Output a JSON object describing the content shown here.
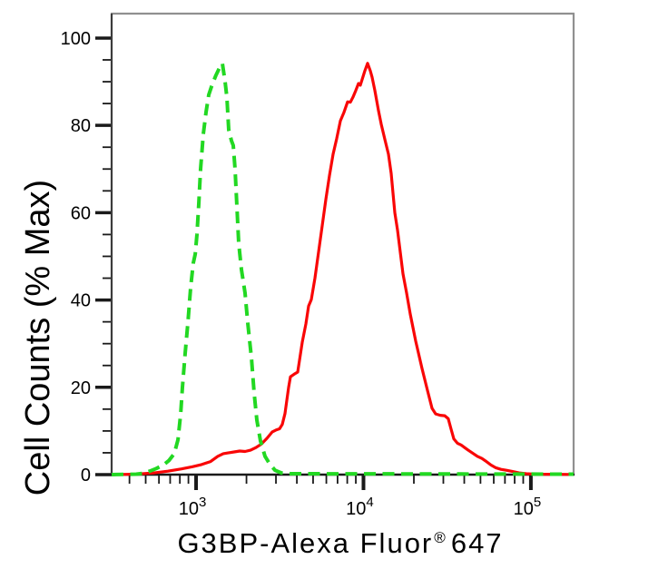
{
  "chart_data": {
    "type": "line",
    "subtype": "flow-cytometry-overlay-histogram",
    "title": "",
    "xlabel": "G3BP-Alexa Fluor® 647",
    "xlabel_parts": {
      "prefix": "G3BP-Alexa Fluor",
      "registered": "®",
      "suffix": "647"
    },
    "ylabel": "Cell Counts (% Max)",
    "x_scale": "log",
    "x_range": [
      313,
      180000
    ],
    "ylim": [
      0,
      105.6
    ],
    "grid": false,
    "legend": "none",
    "y_axis": {
      "major_ticks": [
        0,
        20,
        40,
        60,
        80,
        100
      ],
      "minor_tick_step": 5
    },
    "x_axis": {
      "major_ticks": [
        {
          "value": 1000,
          "base": "10",
          "exponent": "3"
        },
        {
          "value": 10000,
          "base": "10",
          "exponent": "4"
        },
        {
          "value": 100000,
          "base": "10",
          "exponent": "5"
        }
      ],
      "minor_tick_multipliers": [
        2,
        3,
        4,
        5,
        6,
        7,
        8,
        9
      ]
    },
    "colors": {
      "green_dashed": "#22D822",
      "red_solid": "#F90606",
      "axis": "#1A1A1A",
      "left_axis": "#3C3C3C",
      "frame": "#909090",
      "background": "#FFFFFF",
      "text": "#000000"
    },
    "series": [
      {
        "name": "green-dashed-control",
        "color": "#22D822",
        "style": "dashed",
        "peak_value": 1436,
        "peak_pct": 94.2,
        "points": [
          [
            313,
            0
          ],
          [
            439,
            0.1
          ],
          [
            485,
            0.3
          ],
          [
            529,
            0.8
          ],
          [
            578,
            1.4
          ],
          [
            638,
            2.2
          ],
          [
            687,
            3.2
          ],
          [
            741,
            4.8
          ],
          [
            780,
            8
          ],
          [
            809,
            14
          ],
          [
            829,
            20
          ],
          [
            861,
            28
          ],
          [
            894,
            35
          ],
          [
            928,
            43
          ],
          [
            963,
            48.5
          ],
          [
            988,
            50.5
          ],
          [
            1012,
            55
          ],
          [
            1038,
            62
          ],
          [
            1064,
            70
          ],
          [
            1105,
            78
          ],
          [
            1147,
            83
          ],
          [
            1191,
            87
          ],
          [
            1252,
            89.5
          ],
          [
            1316,
            91.5
          ],
          [
            1384,
            93.3
          ],
          [
            1436,
            94.2
          ],
          [
            1490,
            90
          ],
          [
            1528,
            86.4
          ],
          [
            1567,
            79
          ],
          [
            1627,
            76.5
          ],
          [
            1668,
            75.4
          ],
          [
            1710,
            70
          ],
          [
            1753,
            61.5
          ],
          [
            1797,
            53
          ],
          [
            1866,
            47
          ],
          [
            1962,
            41.6
          ],
          [
            2037,
            34.7
          ],
          [
            2142,
            26.6
          ],
          [
            2222,
            18.7
          ],
          [
            2306,
            12.5
          ],
          [
            2426,
            7.7
          ],
          [
            2581,
            4.2
          ],
          [
            2747,
            2.5
          ],
          [
            2962,
            1
          ],
          [
            3230,
            0.4
          ],
          [
            3665,
            0.2
          ],
          [
            180000,
            0.1
          ]
        ]
      },
      {
        "name": "red-solid-stained",
        "color": "#F90606",
        "style": "solid",
        "peak_value": 10580,
        "peak_pct": 94.2,
        "points": [
          [
            313,
            0
          ],
          [
            439,
            0.1
          ],
          [
            563,
            0.4
          ],
          [
            679,
            0.8
          ],
          [
            819,
            1.3
          ],
          [
            951,
            1.8
          ],
          [
            1078,
            2.3
          ],
          [
            1221,
            3
          ],
          [
            1349,
            4.2
          ],
          [
            1454,
            4.8
          ],
          [
            1567,
            5
          ],
          [
            1689,
            5.2
          ],
          [
            1821,
            5.4
          ],
          [
            1962,
            5.3
          ],
          [
            2115,
            5.6
          ],
          [
            2279,
            6.2
          ],
          [
            2456,
            7
          ],
          [
            2647,
            8.3
          ],
          [
            2853,
            9.8
          ],
          [
            2999,
            10.2
          ],
          [
            3153,
            10.5
          ],
          [
            3272,
            11.5
          ],
          [
            3398,
            14
          ],
          [
            3483,
            17
          ],
          [
            3572,
            20
          ],
          [
            3662,
            22.4
          ],
          [
            3851,
            23
          ],
          [
            4046,
            23.5
          ],
          [
            4148,
            26.2
          ],
          [
            4306,
            30.3
          ],
          [
            4527,
            34.5
          ],
          [
            4699,
            38.6
          ],
          [
            4878,
            40.1
          ],
          [
            5128,
            45
          ],
          [
            5392,
            51
          ],
          [
            5668,
            57
          ],
          [
            5958,
            63
          ],
          [
            6263,
            68.5
          ],
          [
            6585,
            73.4
          ],
          [
            6920,
            77
          ],
          [
            7274,
            81
          ],
          [
            7647,
            83
          ],
          [
            8036,
            85.4
          ],
          [
            8345,
            85.3
          ],
          [
            8663,
            86.5
          ],
          [
            8994,
            88
          ],
          [
            9337,
            89.6
          ],
          [
            9572,
            89.2
          ],
          [
            9813,
            90.5
          ],
          [
            10190,
            92.5
          ],
          [
            10580,
            94.2
          ],
          [
            10980,
            92.5
          ],
          [
            11260,
            91
          ],
          [
            11690,
            88
          ],
          [
            12290,
            83.4
          ],
          [
            12760,
            80.3
          ],
          [
            13410,
            76.8
          ],
          [
            14100,
            73.4
          ],
          [
            14640,
            69
          ],
          [
            15380,
            60
          ],
          [
            15970,
            56
          ],
          [
            16580,
            51
          ],
          [
            17210,
            46
          ],
          [
            18090,
            41.6
          ],
          [
            19020,
            36.8
          ],
          [
            20500,
            30.6
          ],
          [
            22370,
            24.3
          ],
          [
            24110,
            19.3
          ],
          [
            25660,
            15.2
          ],
          [
            26970,
            13.9
          ],
          [
            28710,
            13.6
          ],
          [
            30560,
            13.5
          ],
          [
            32120,
            12.8
          ],
          [
            33340,
            10.5
          ],
          [
            34620,
            8.2
          ],
          [
            36400,
            7.2
          ],
          [
            38260,
            6.8
          ],
          [
            40210,
            6.2
          ],
          [
            42260,
            5.6
          ],
          [
            44990,
            4.9
          ],
          [
            47890,
            4.2
          ],
          [
            50980,
            3.7
          ],
          [
            54250,
            3
          ],
          [
            57740,
            2.2
          ],
          [
            61460,
            1.6
          ],
          [
            66230,
            1.2
          ],
          [
            71400,
            1
          ],
          [
            77920,
            0.7
          ],
          [
            85030,
            0.4
          ],
          [
            93950,
            0.2
          ],
          [
            106000,
            0.1
          ],
          [
            180000,
            0.05
          ]
        ]
      }
    ]
  }
}
